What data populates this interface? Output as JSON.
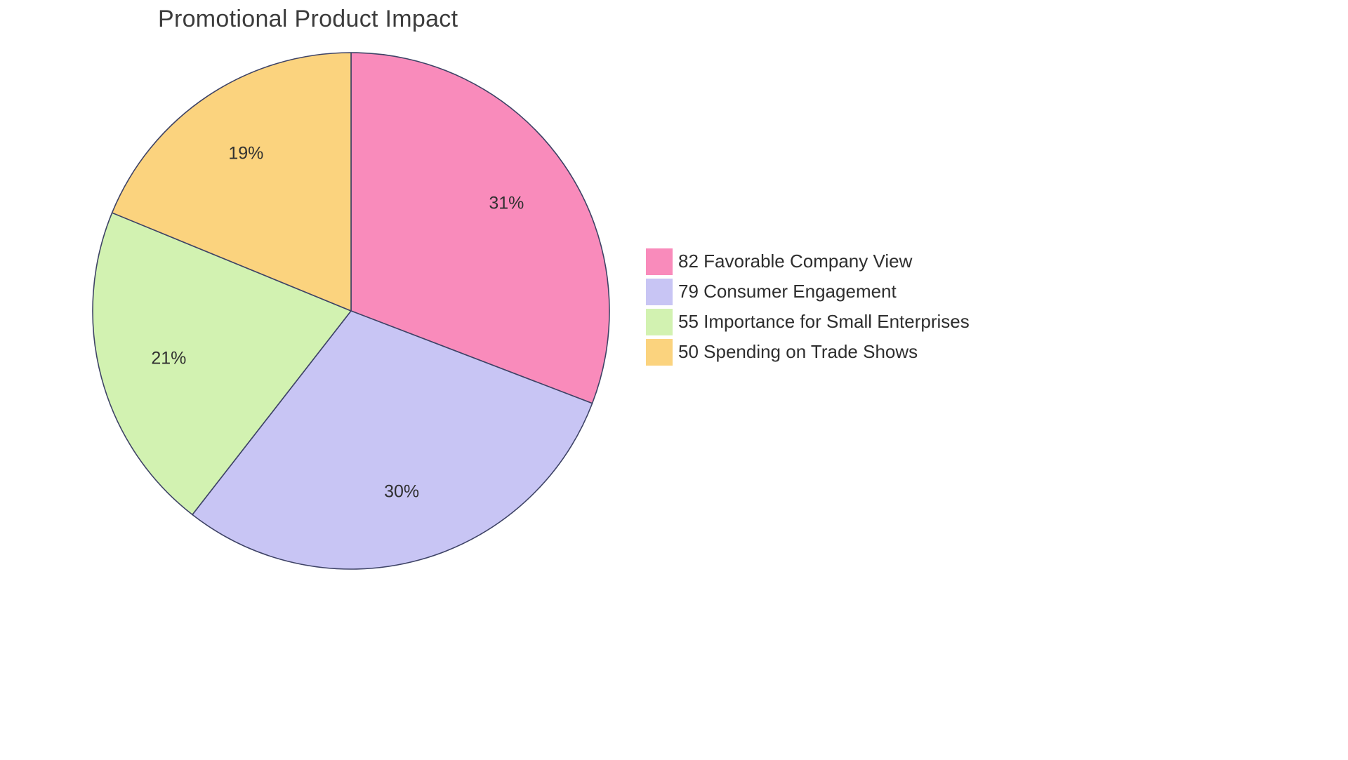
{
  "page": {
    "background_color": "#ffffff"
  },
  "chart_data": {
    "type": "pie",
    "title": "Promotional Product Impact",
    "legend_position": "right",
    "direction": "clockwise",
    "start_angle_deg": 0,
    "stroke_color": "#3e4366",
    "label_color": "#303030",
    "slices": [
      {
        "label": "82 Favorable Company View",
        "value": 82,
        "percent_label": "31%",
        "color": "#f98bbb"
      },
      {
        "label": "79 Consumer Engagement",
        "value": 79,
        "percent_label": "30%",
        "color": "#c8c5f4"
      },
      {
        "label": "55 Importance for Small Enterprises",
        "value": 55,
        "percent_label": "21%",
        "color": "#d2f2b1"
      },
      {
        "label": "50 Spending on Trade Shows",
        "value": 50,
        "percent_label": "19%",
        "color": "#fbd37e"
      }
    ]
  }
}
